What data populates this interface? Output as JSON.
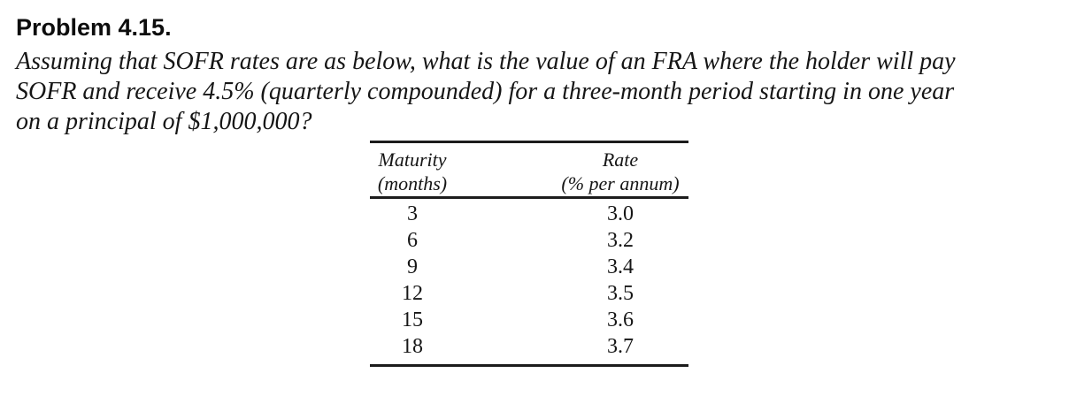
{
  "colors": {
    "background": "#ffffff",
    "text": "#161616",
    "table_rule": "#1c1c1c"
  },
  "heading": "Problem 4.15.",
  "statement": {
    "lines": [
      "Assuming that SOFR rates are as below, what is the value of an FRA where the holder will pay",
      "SOFR and receive 4.5% (quarterly compounded) for a three-month period starting in one year",
      "on a principal of $1,000,000?"
    ]
  },
  "rate_table": {
    "columns": [
      {
        "title": "Maturity",
        "subtitle": "(months)"
      },
      {
        "title": "Rate",
        "subtitle": "(% per annum)"
      }
    ],
    "rows": [
      {
        "maturity": "3",
        "rate": "3.0"
      },
      {
        "maturity": "6",
        "rate": "3.2"
      },
      {
        "maturity": "9",
        "rate": "3.4"
      },
      {
        "maturity": "12",
        "rate": "3.5"
      },
      {
        "maturity": "15",
        "rate": "3.6"
      },
      {
        "maturity": "18",
        "rate": "3.7"
      }
    ]
  }
}
